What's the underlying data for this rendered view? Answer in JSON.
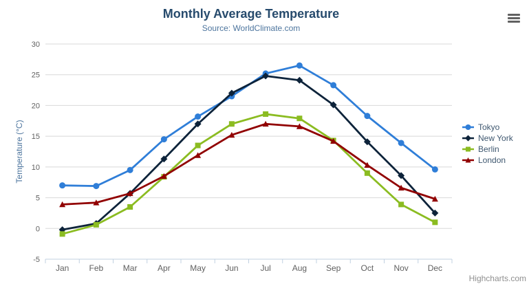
{
  "chart_data": {
    "type": "line",
    "title": "Monthly Average Temperature",
    "subtitle": "Source: WorldClimate.com",
    "categories": [
      "Jan",
      "Feb",
      "Mar",
      "Apr",
      "May",
      "Jun",
      "Jul",
      "Aug",
      "Sep",
      "Oct",
      "Nov",
      "Dec"
    ],
    "series": [
      {
        "name": "Tokyo",
        "color": "#2f7ed8",
        "marker": "circle",
        "values": [
          7.0,
          6.9,
          9.5,
          14.5,
          18.2,
          21.5,
          25.2,
          26.5,
          23.3,
          18.3,
          13.9,
          9.6
        ]
      },
      {
        "name": "New York",
        "color": "#0d233a",
        "marker": "diamond",
        "values": [
          -0.2,
          0.8,
          5.7,
          11.3,
          17.0,
          22.0,
          24.8,
          24.1,
          20.1,
          14.1,
          8.6,
          2.5
        ]
      },
      {
        "name": "Berlin",
        "color": "#8bbc21",
        "marker": "square",
        "values": [
          -0.9,
          0.6,
          3.5,
          8.4,
          13.5,
          17.0,
          18.6,
          17.9,
          14.3,
          9.0,
          3.9,
          1.0
        ]
      },
      {
        "name": "London",
        "color": "#910000",
        "marker": "triangle",
        "values": [
          3.9,
          4.2,
          5.7,
          8.5,
          11.9,
          15.2,
          17.0,
          16.6,
          14.2,
          10.3,
          6.6,
          4.8
        ]
      }
    ],
    "xlabel": "",
    "ylabel": "Temperature (°C)",
    "ylim": [
      -5,
      30
    ],
    "yticks": [
      -5,
      0,
      5,
      10,
      15,
      20,
      25,
      30
    ],
    "grid": true,
    "legend_position": "right"
  },
  "credits": {
    "label": "Highcharts.com"
  },
  "colors": {
    "title": "#274b6d",
    "subtitle": "#4d759e",
    "axis_title": "#4d759e",
    "tick_label": "#606060",
    "gridline": "#d8d8d8",
    "axis_line": "#c0d0e0",
    "legend_text": "#3e576f",
    "credits_text": "#8f8f8f"
  }
}
